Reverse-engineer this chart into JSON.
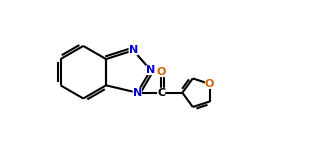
{
  "bg_color": "#ffffff",
  "bond_color": "#000000",
  "N_color": "#0000cc",
  "O_color": "#cc6600",
  "line_width": 1.5,
  "font_size": 8,
  "fig_width": 3.31,
  "fig_height": 1.43,
  "dpi": 100,
  "xlim": [
    0,
    10
  ],
  "ylim": [
    -2.2,
    2.2
  ]
}
